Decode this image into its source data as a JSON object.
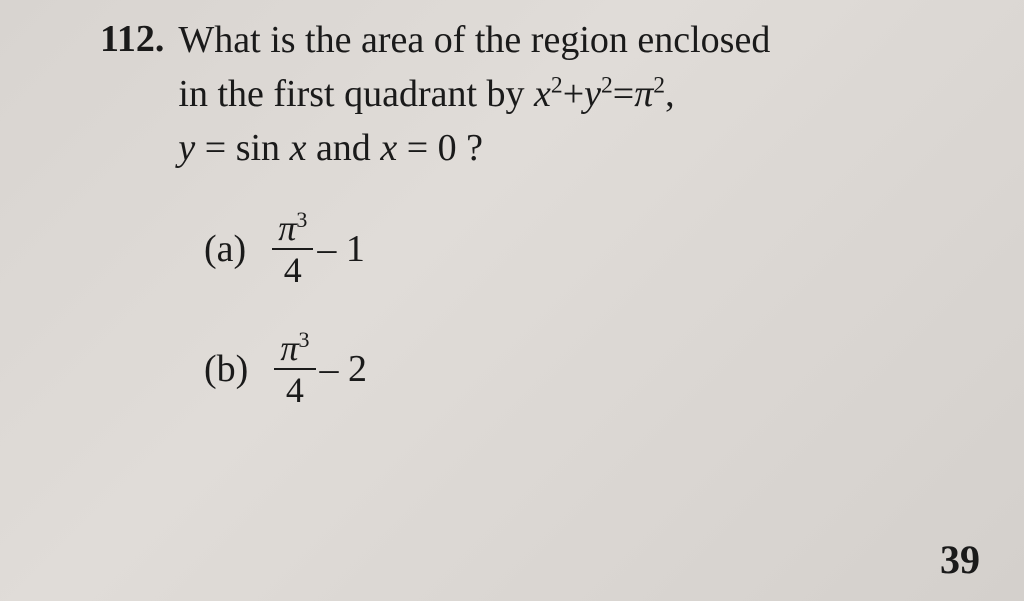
{
  "question": {
    "number": "112.",
    "line1_prefix": "What is the area of the region enclosed",
    "line2_prefix": "in the first quadrant by ",
    "eq1_lhs_a": "x",
    "eq1_sup_a": "2",
    "eq1_plus": "+",
    "eq1_lhs_b": "y",
    "eq1_sup_b": "2",
    "eq1_eq": "=",
    "eq1_rhs": "π",
    "eq1_rhs_sup": "2",
    "eq1_comma": ",",
    "line3_y": "y",
    "line3_eq1": " = sin ",
    "line3_x1": "x",
    "line3_and": " and ",
    "line3_x2": "x",
    "line3_eq2": " = 0 ?"
  },
  "options": {
    "a": {
      "label": "(a)",
      "num_base": "π",
      "num_sup": "3",
      "den": "4",
      "tail": " – 1"
    },
    "b": {
      "label": "(b)",
      "num_base": "π",
      "num_sup": "3",
      "den": "4",
      "tail": " – 2"
    }
  },
  "page_number": "39",
  "colors": {
    "text": "#1a1a1a",
    "background": "#dcd8d4"
  },
  "typography": {
    "body_fontsize_pt": 28,
    "font_family": "Times New Roman, serif"
  }
}
